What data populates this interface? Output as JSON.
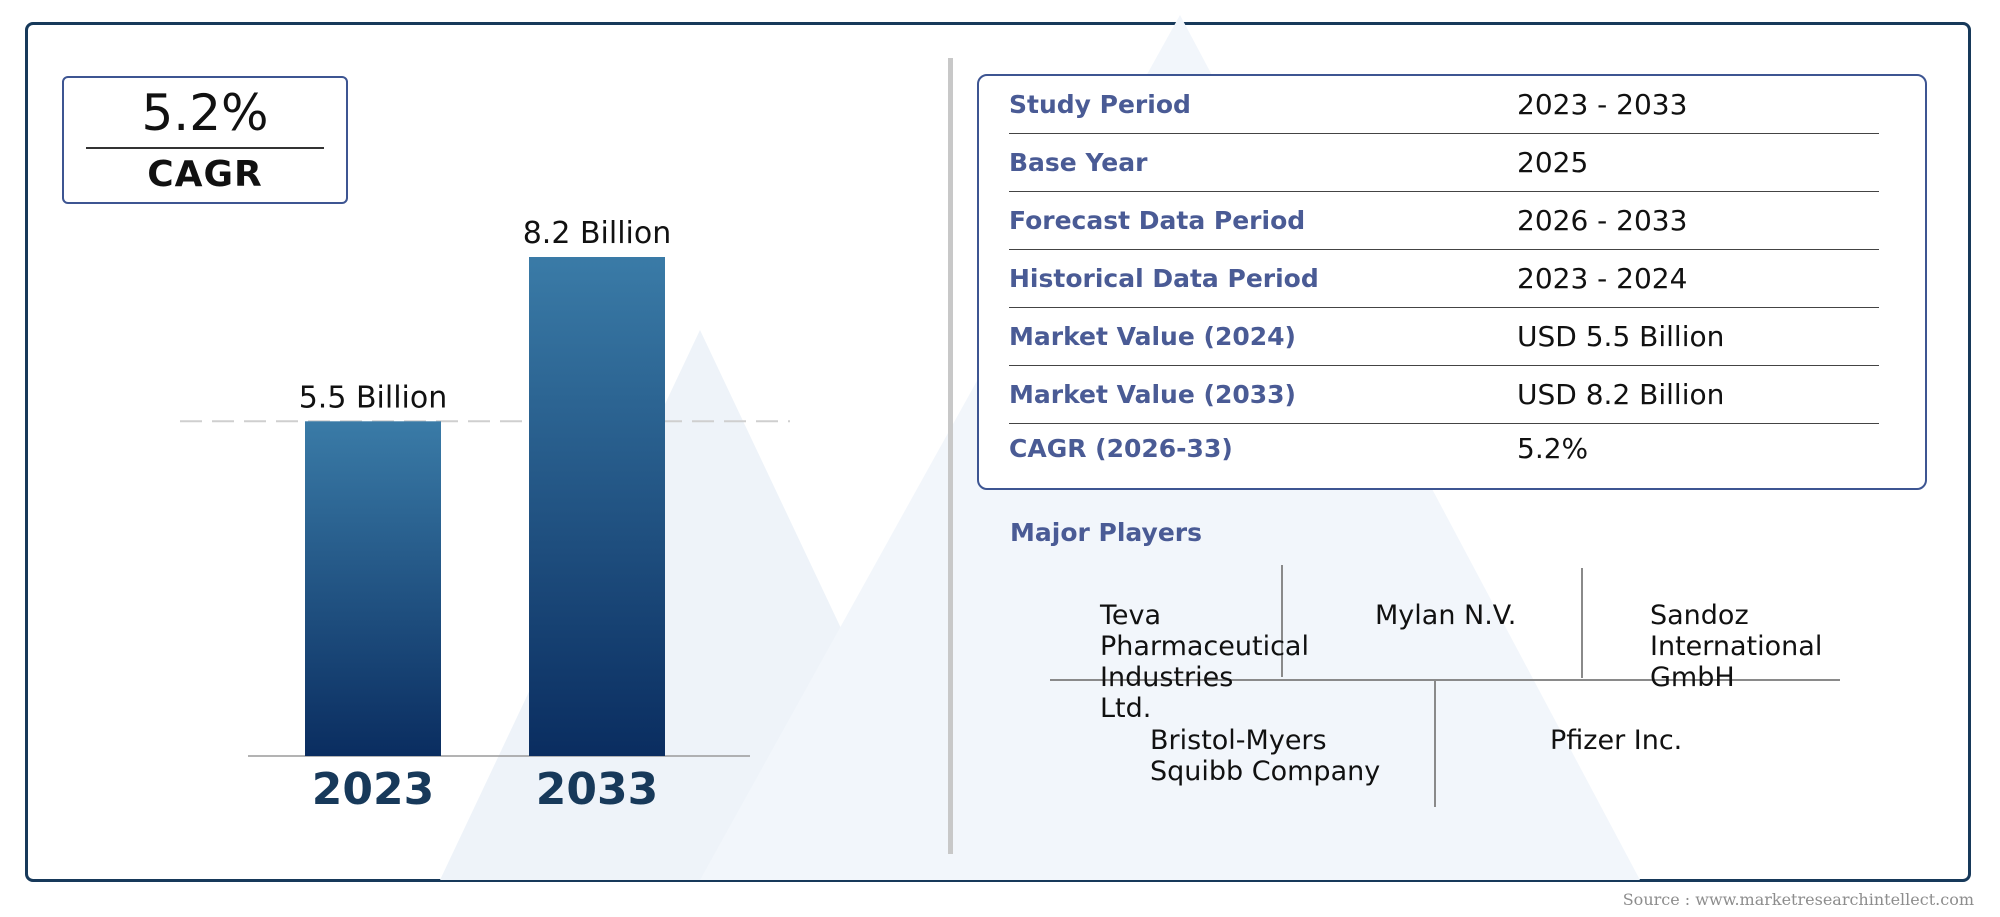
{
  "cagr": {
    "value": "5.2%",
    "label": "CAGR"
  },
  "chart_data": {
    "type": "bar",
    "categories": [
      "2023",
      "2033"
    ],
    "values": [
      5.5,
      8.2
    ],
    "data_labels": [
      "5.5 Billion",
      "8.2 Billion"
    ],
    "unit": "Billion",
    "ylim": [
      0,
      8.2
    ],
    "reference_line": 5.5,
    "colors": {
      "bar_top": "#3a7ba7",
      "bar_bottom": "#0a2d60",
      "category_label": "#17395a"
    }
  },
  "summary": {
    "rows": [
      {
        "label": "Study Period",
        "value": "2023 - 2033"
      },
      {
        "label": "Base Year",
        "value": "2025"
      },
      {
        "label": "Forecast Data Period",
        "value": "2026 - 2033"
      },
      {
        "label": "Historical Data Period",
        "value": "2023 - 2024"
      },
      {
        "label": "Market Value (2024)",
        "value": "USD 5.5 Billion"
      },
      {
        "label": "Market Value (2033)",
        "value": "USD 8.2 Billion"
      },
      {
        "label": "CAGR (2026-33)",
        "value": "5.2%"
      }
    ]
  },
  "players": {
    "title": "Major Players",
    "items": [
      "Teva Pharmaceutical Industries Ltd.",
      "Mylan N.V.",
      "Sandoz International GmbH",
      "Bristol-Myers Squibb Company",
      "Pfizer Inc."
    ]
  },
  "source": "Source : www.marketresearchintellect.com",
  "colors": {
    "accent": "#3d5592",
    "frame": "#17395a",
    "label_text": "#4a5b95"
  }
}
